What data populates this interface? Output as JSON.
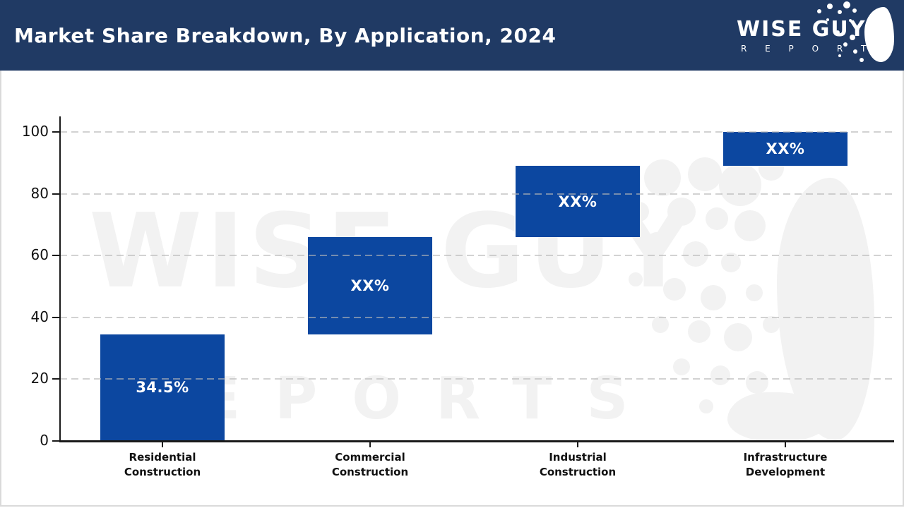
{
  "header": {
    "title": "Market Share Breakdown, By Application, 2024",
    "logo": {
      "name": "WISE GUY",
      "sub": "R E P O R T S"
    }
  },
  "watermark": {
    "line1": "WISE GUY",
    "line2": "REPORTS"
  },
  "colors": {
    "header_bg": "#203a64",
    "bar": "#0c47a0",
    "axis": "#1a1a1a",
    "grid": "#b6b6b6",
    "watermark": "#f2f2f2",
    "bar_label": "#ffffff"
  },
  "chart_data": {
    "type": "bar",
    "subtype": "waterfall",
    "title": "Market Share Breakdown, By Application, 2024",
    "categories": [
      "Residential Construction",
      "Commercial Construction",
      "Industrial Construction",
      "Infrastructure Development"
    ],
    "segments": [
      {
        "category": "Residential Construction",
        "start": 0,
        "end": 34.5,
        "label": "34.5%"
      },
      {
        "category": "Commercial Construction",
        "start": 34.5,
        "end": 66,
        "label": "XX%"
      },
      {
        "category": "Industrial Construction",
        "start": 66,
        "end": 89,
        "label": "XX%"
      },
      {
        "category": "Infrastructure Development",
        "start": 89,
        "end": 100,
        "label": "XX%"
      }
    ],
    "ylim": [
      0,
      100
    ],
    "yticks": [
      0,
      20,
      40,
      60,
      80,
      100
    ],
    "xlabel": "",
    "ylabel": "",
    "grid": "horizontal-dashed",
    "legend": "none"
  }
}
